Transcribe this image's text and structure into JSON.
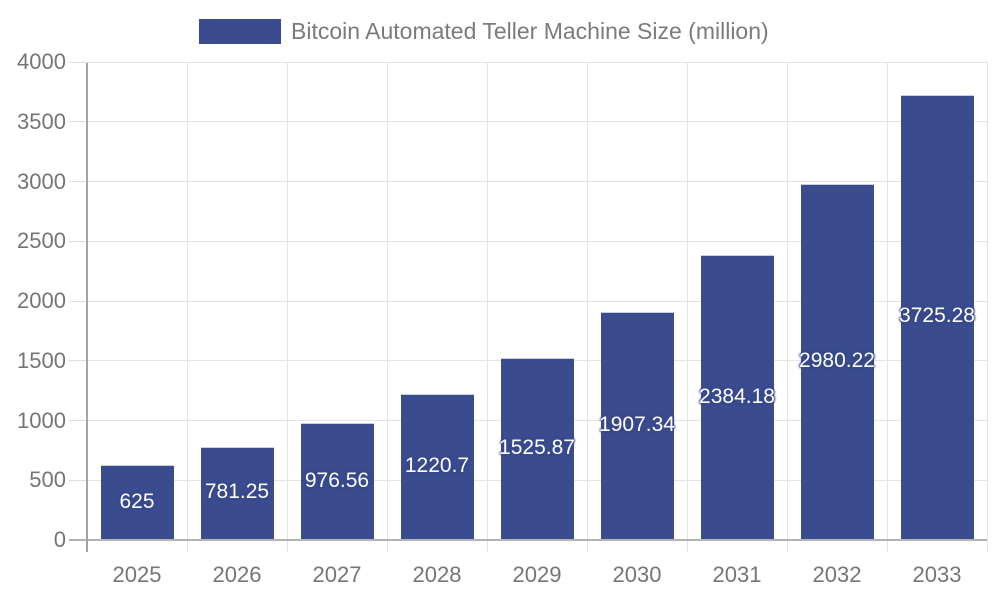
{
  "legend": {
    "items": [
      {
        "label": "Bitcoin Automated Teller Machine Size (million)",
        "color": "#3A4B8E"
      }
    ]
  },
  "chart_data": {
    "type": "bar",
    "title": "",
    "categories": [
      "2025",
      "2026",
      "2027",
      "2028",
      "2029",
      "2030",
      "2031",
      "2032",
      "2033"
    ],
    "series": [
      {
        "name": "Bitcoin Automated Teller Machine Size (million)",
        "values": [
          625,
          781.25,
          976.56,
          1220.7,
          1525.87,
          1907.34,
          2384.18,
          2980.22,
          3725.28
        ],
        "value_labels": [
          "625",
          "781.25",
          "976.56",
          "1220.7",
          "1525.87",
          "1907.34",
          "2384.18",
          "2980.22",
          "3725.28"
        ],
        "color": "#3A4B8E"
      }
    ],
    "xlabel": "",
    "ylabel": "",
    "ylim": [
      0,
      4000
    ],
    "yticks": [
      0,
      500,
      1000,
      1500,
      2000,
      2500,
      3000,
      3500,
      4000
    ],
    "grid": "horizontal-and-vertical",
    "legend_position": "top",
    "value_label_position": "inside-center",
    "colors": {
      "bar": "#3A4B8E",
      "grid_line": "#e4e4e4",
      "axis_line": "#b3b3b3",
      "tick_label": "#757575",
      "legend_text": "#7b7b7b",
      "value_label": "#ffffff",
      "background": "#ffffff"
    }
  }
}
